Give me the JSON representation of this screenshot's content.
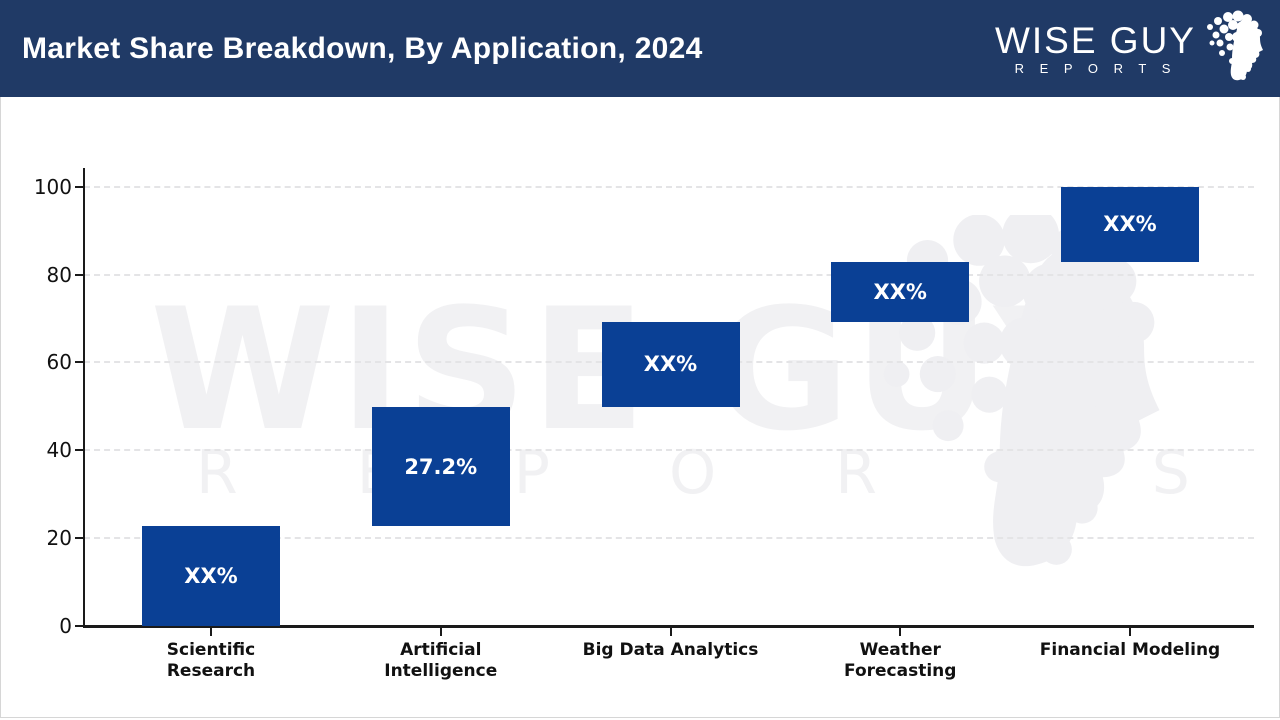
{
  "header": {
    "title": "Market Share Breakdown, By Application, 2024",
    "logo_line1": "WISE GUY",
    "logo_line2": "R E P O R T S"
  },
  "watermark": {
    "line1": "WISE GUY",
    "line2": "R E P O R T S"
  },
  "chart_data": {
    "type": "bar",
    "subtype": "waterfall",
    "title": "Market Share Breakdown, By Application, 2024",
    "categories": [
      "Scientific Research",
      "Artificial Intelligence",
      "Big Data Analytics",
      "Weather Forecasting",
      "Financial Modeling"
    ],
    "category_label_lines": [
      [
        "Scientific",
        "Research"
      ],
      [
        "Artificial",
        "Intelligence"
      ],
      [
        "Big Data Analytics"
      ],
      [
        "Weather",
        "Forecasting"
      ],
      [
        "Financial Modeling"
      ]
    ],
    "bars": [
      {
        "category": "Scientific Research",
        "start": 0,
        "end": 22.7,
        "value_label": "XX%"
      },
      {
        "category": "Artificial Intelligence",
        "start": 22.7,
        "end": 49.9,
        "value_label": "27.2%",
        "value": 27.2
      },
      {
        "category": "Big Data Analytics",
        "start": 49.9,
        "end": 69.2,
        "value_label": "XX%"
      },
      {
        "category": "Weather Forecasting",
        "start": 69.2,
        "end": 82.9,
        "value_label": "XX%"
      },
      {
        "category": "Financial Modeling",
        "start": 82.9,
        "end": 100,
        "value_label": "XX%"
      }
    ],
    "yticks": [
      0,
      20,
      40,
      60,
      80,
      100
    ],
    "ylim": [
      0,
      104
    ],
    "xlabel": "",
    "ylabel": "",
    "grid": {
      "axis": "y",
      "style": "dashed",
      "color": "#e4e4e6"
    },
    "legend": null,
    "bar_color": "#0a4095"
  },
  "colors": {
    "header_bg": "#203a66",
    "bar_blue": "#0a4095",
    "page_bg": "#ffffff",
    "border_gray": "#d6d6d6",
    "axis_black": "#1a1a1a",
    "watermark_gray": "#f1f1f3"
  }
}
